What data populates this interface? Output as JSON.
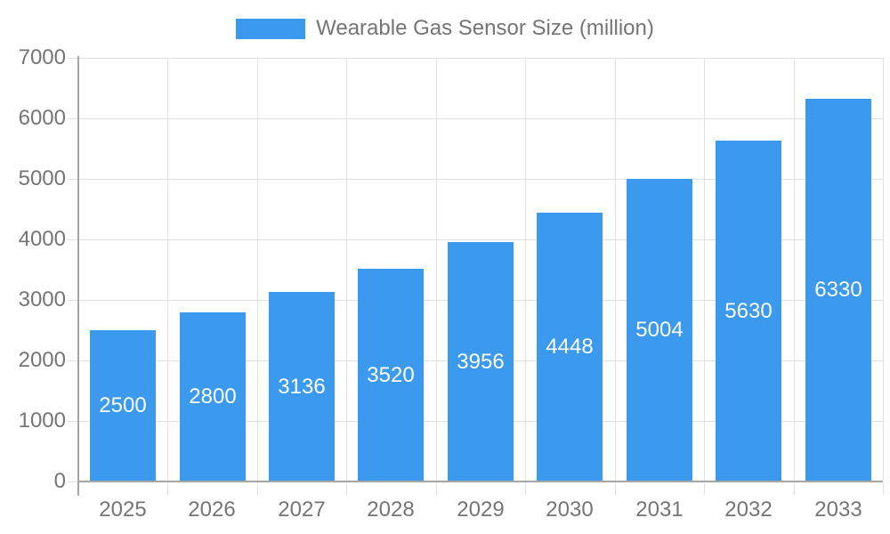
{
  "chart_data": {
    "type": "bar",
    "title": "",
    "categories": [
      "2025",
      "2026",
      "2027",
      "2028",
      "2029",
      "2030",
      "2031",
      "2032",
      "2033"
    ],
    "series": [
      {
        "name": "Wearable Gas Sensor Size (million)",
        "values": [
          2500,
          2800,
          3136,
          3520,
          3956,
          4448,
          5004,
          5630,
          6330
        ]
      }
    ],
    "xlabel": "",
    "ylabel": "",
    "ylim": [
      0,
      7000
    ],
    "ytick_interval": 1000,
    "grid": true,
    "legend_position": "top",
    "bar_labels_visible": true,
    "colors": {
      "bar": "#3b99ee",
      "bar_label": "#ffffff",
      "tick_label": "#757575",
      "legend_label": "#757575",
      "gridline": "#e2e2e2",
      "axis": "#a6a6a6",
      "background": "#ffffff"
    }
  }
}
